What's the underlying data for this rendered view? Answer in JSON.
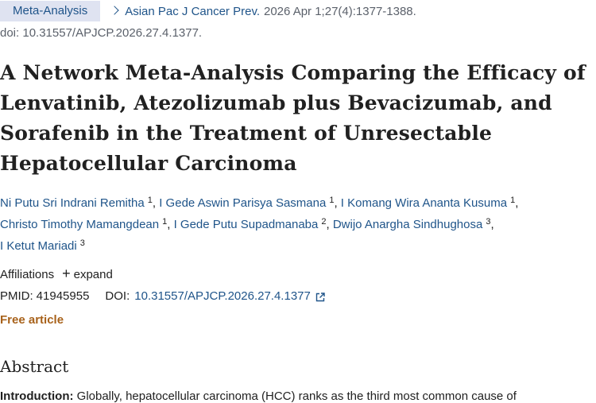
{
  "header": {
    "badge": "Meta-Analysis",
    "journal": "Asian Pac J Cancer Prev.",
    "citation": "2026 Apr 1;27(4):1377-1388.",
    "doi_line": "doi: 10.31557/APJCP.2026.27.4.1377."
  },
  "title": "A Network Meta-Analysis Comparing the Efficacy of Lenvatinib, Atezolizumab plus Bevacizumab, and Sorafenib in the Treatment of Unresectable Hepatocellular Carcinoma",
  "authors": [
    {
      "name": "Ni Putu Sri Indrani Remitha",
      "aff": "1"
    },
    {
      "name": "I Gede Aswin Parisya Sasmana",
      "aff": "1"
    },
    {
      "name": "I Komang Wira Ananta Kusuma",
      "aff": "1"
    },
    {
      "name": "Christo Timothy Mamangdean",
      "aff": "1"
    },
    {
      "name": "I Gede Putu Supadmanaba",
      "aff": "2"
    },
    {
      "name": "Dwijo Anargha Sindhughosa",
      "aff": "3"
    },
    {
      "name": "I Ketut Mariadi",
      "aff": "3"
    }
  ],
  "affiliations": {
    "label": "Affiliations",
    "expand": "expand"
  },
  "ids": {
    "pmid_label": "PMID:",
    "pmid": "41945955",
    "doi_label": "DOI:",
    "doi": "10.31557/APJCP.2026.27.4.1377"
  },
  "free_article": "Free article",
  "abstract": {
    "heading": "Abstract",
    "intro_label": "Introduction:",
    "intro_text": "Globally, hepatocellular carcinoma (HCC) ranks as the third most common cause of"
  },
  "colors": {
    "link": "#20558a",
    "badge_bg": "#dfe3f1",
    "free": "#a8621b"
  },
  "icons": {
    "breadcrumb": "chevron-right-icon",
    "expand": "plus-icon",
    "external": "external-link-icon"
  }
}
